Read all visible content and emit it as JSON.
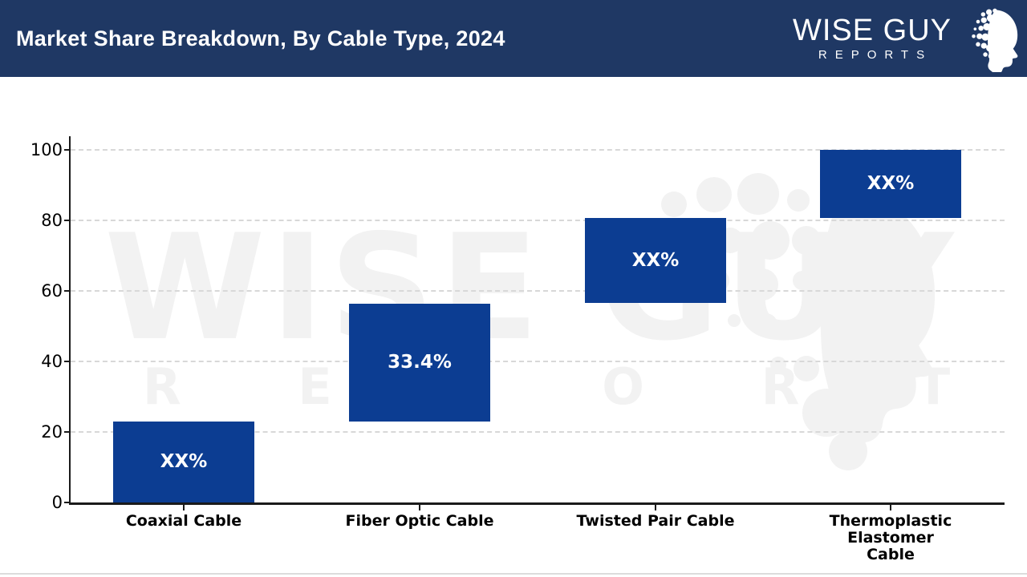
{
  "header": {
    "title": "Market Share Breakdown, By Cable Type, 2024",
    "logo": {
      "line1": "WISE GUY",
      "line2": "REPORTS"
    },
    "bg_color": "#1f3864"
  },
  "watermark": {
    "line1": "WISE GUY",
    "line2": "REPORTS"
  },
  "chart_data": {
    "type": "bar",
    "subtype": "waterfall",
    "title": "Market Share Breakdown, By Cable Type, 2024",
    "categories": [
      "Coaxial Cable",
      "Fiber Optic Cable",
      "Twisted Pair Cable",
      "Thermoplastic Elastomer Cable"
    ],
    "category_lines": [
      [
        "Coaxial Cable"
      ],
      [
        "Fiber Optic Cable"
      ],
      [
        "Twisted Pair Cable"
      ],
      [
        "Thermoplastic",
        "Elastomer Cable"
      ]
    ],
    "segments": [
      {
        "label": "XX%",
        "start": 0,
        "end": 23
      },
      {
        "label": "33.4%",
        "start": 23,
        "end": 56.4
      },
      {
        "label": "XX%",
        "start": 56.6,
        "end": 80.6
      },
      {
        "label": "XX%",
        "start": 80.7,
        "end": 100
      }
    ],
    "values": [
      23,
      33.4,
      24,
      19.3
    ],
    "bar_labels": [
      "XX%",
      "33.4%",
      "XX%",
      "XX%"
    ],
    "yticks": [
      0,
      20,
      40,
      60,
      80,
      100
    ],
    "ylim": [
      0,
      104
    ],
    "xlabel": "",
    "ylabel": "",
    "grid": "horizontal-dashed",
    "legend": "none",
    "bar_color": "#0c3d92",
    "bar_label_color": "#ffffff",
    "grid_color": "#d8d8d8",
    "axis_color": "#1a1a1a"
  }
}
